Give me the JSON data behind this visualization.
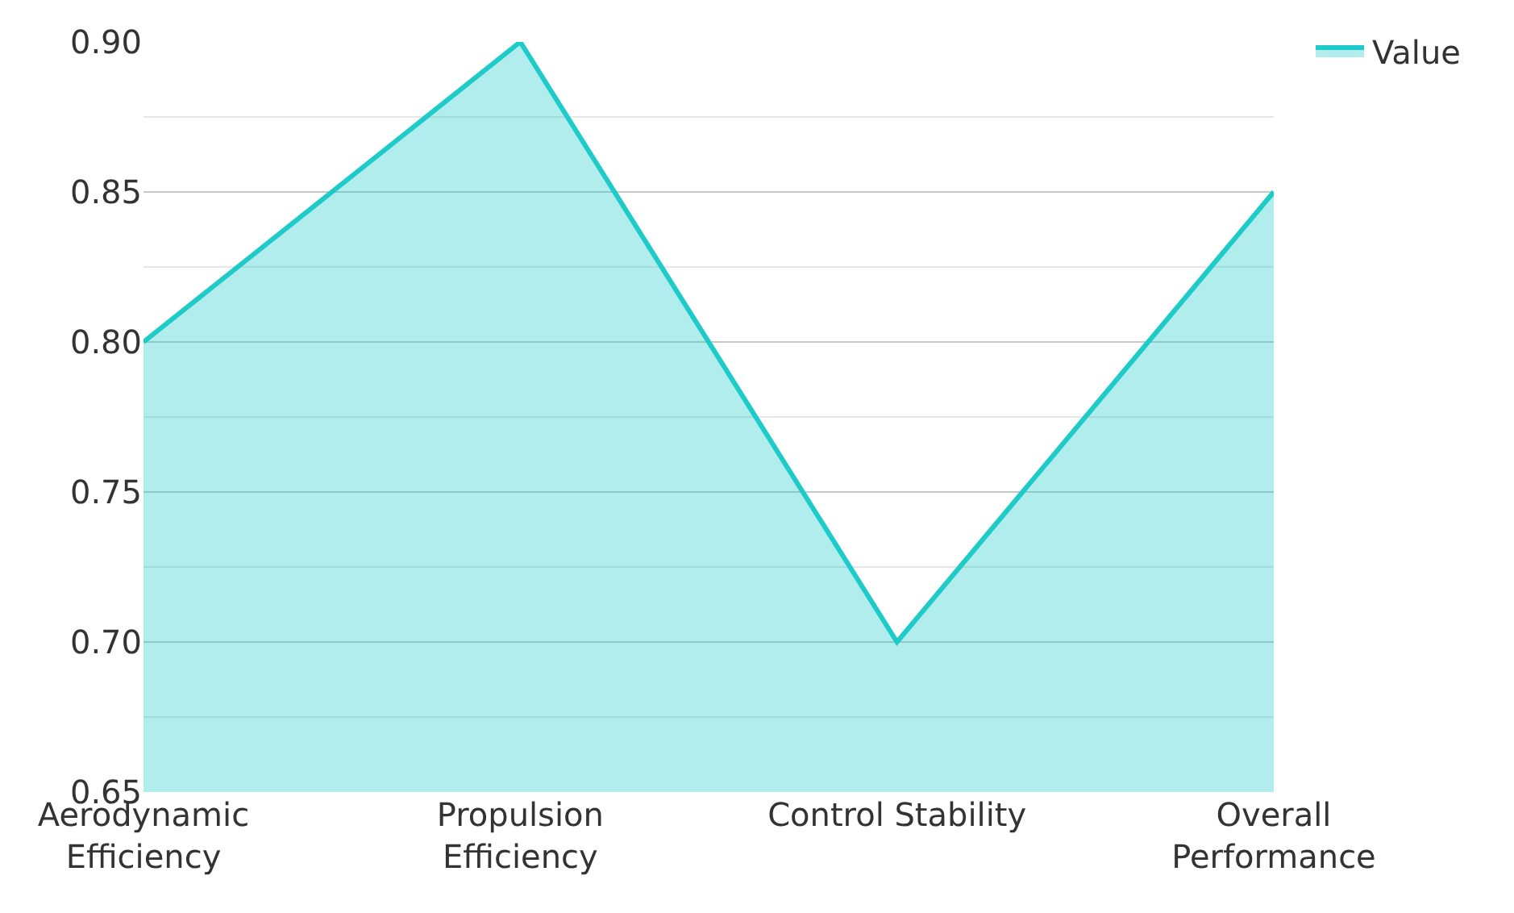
{
  "chart_data": {
    "type": "area",
    "categories": [
      "Aerodynamic Efficiency",
      "Propulsion Efficiency",
      "Control Stability",
      "Overall Performance"
    ],
    "series": [
      {
        "name": "Value",
        "color": "#1ecbc8",
        "values": [
          0.8,
          0.9,
          0.7,
          0.85
        ]
      }
    ],
    "ylim": [
      0.65,
      0.9
    ],
    "yticks": [
      0.65,
      {
        "value": 0.7,
        "label": "0.70"
      },
      0.75,
      {
        "value": 0.8,
        "label": "0.80"
      },
      0.85,
      {
        "value": 0.9,
        "label": "0.90"
      }
    ],
    "grid": "y",
    "legend": "top right",
    "marker": "none",
    "line_style": "solid"
  }
}
